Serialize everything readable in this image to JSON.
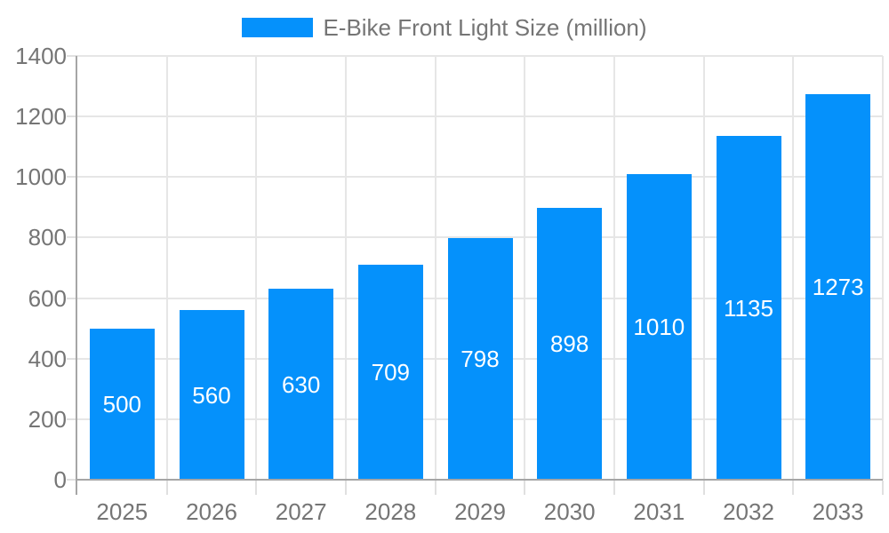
{
  "chart_data": {
    "type": "bar",
    "title": "E-Bike Front Light Size (million)",
    "categories": [
      "2025",
      "2026",
      "2027",
      "2028",
      "2029",
      "2030",
      "2031",
      "2032",
      "2033"
    ],
    "values": [
      500,
      560,
      630,
      709,
      798,
      898,
      1010,
      1135,
      1273
    ],
    "xlabel": "",
    "ylabel": "",
    "ylim": [
      0,
      1400
    ],
    "ytick_step": 200,
    "grid": true,
    "legend_position": "top-center",
    "bar_labels_inside": true,
    "colors": {
      "bar": "#0591fb",
      "bar_label": "#ffffff",
      "axis_line": "#a6a6a6",
      "gridline": "#e6e6e6",
      "tick": "#e0e0e0",
      "text": "#757575"
    }
  }
}
